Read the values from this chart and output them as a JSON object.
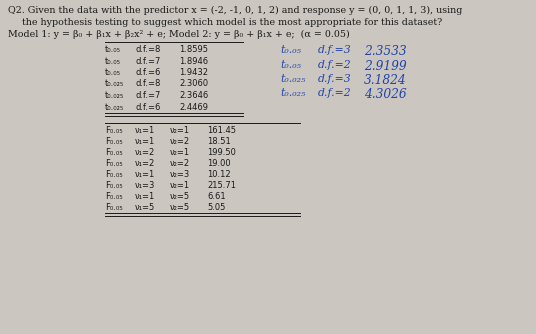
{
  "title_line1": "Q2. Given the data with the predictor x = (-2, -1, 0, 1, 2) and response y = (0, 0, 1, 1, 3), using",
  "title_line2": "the hypothesis testing to suggest which model is the most appropriate for this dataset?",
  "title_line3": "Model 1: y = β₀ + β₁x + β₂x² + e; Model 2: y = β₀ + β₁x + e;  (α = 0.05)",
  "t_table_rows": [
    [
      "t₀.₀₅",
      "d.f.=8",
      "1.8595"
    ],
    [
      "t₀.₀₅",
      "d.f.=7",
      "1.8946"
    ],
    [
      "t₀.₀₅",
      "d.f.=6",
      "1.9432"
    ],
    [
      "t₀.₀₂₅",
      "d.f.=8",
      "2.3060"
    ],
    [
      "t₀.₀₂₅",
      "d.f.=7",
      "2.3646"
    ],
    [
      "t₀.₀₂₅",
      "d.f.=6",
      "2.4469"
    ]
  ],
  "t_right_rows": [
    [
      "t₀.₀₅",
      "d.f.=3",
      "2.3533"
    ],
    [
      "t₀.₀₅",
      "d.f.=2",
      "2.9199"
    ],
    [
      "t₀.₀₂₅",
      "d.f.=3",
      "3.1824"
    ],
    [
      "t₀.₀₂₅",
      "d.f.=2",
      "4.3026"
    ]
  ],
  "F_table_rows": [
    [
      "F₀.₀₅",
      "ν₁=1",
      "ν₂=1",
      "161.45"
    ],
    [
      "F₀.₀₅",
      "ν₁=1",
      "ν₂=2",
      "18.51"
    ],
    [
      "F₀.₀₅",
      "ν₁=2",
      "ν₂=1",
      "199.50"
    ],
    [
      "F₀.₀₅",
      "ν₁=2",
      "ν₂=2",
      "19.00"
    ],
    [
      "F₀.₀₅",
      "ν₁=1",
      "ν₂=3",
      "10.12"
    ],
    [
      "F₀.₀₅",
      "ν₁=3",
      "ν₂=1",
      "215.71"
    ],
    [
      "F₀.₀₅",
      "ν₁=1",
      "ν₂=5",
      "6.61"
    ],
    [
      "F₀.₀₅",
      "ν₁=5",
      "ν₂=5",
      "5.05"
    ]
  ],
  "bg_color": "#cbc7c0",
  "text_color": "#1a1a1a",
  "handwritten_color": "#2244aa"
}
